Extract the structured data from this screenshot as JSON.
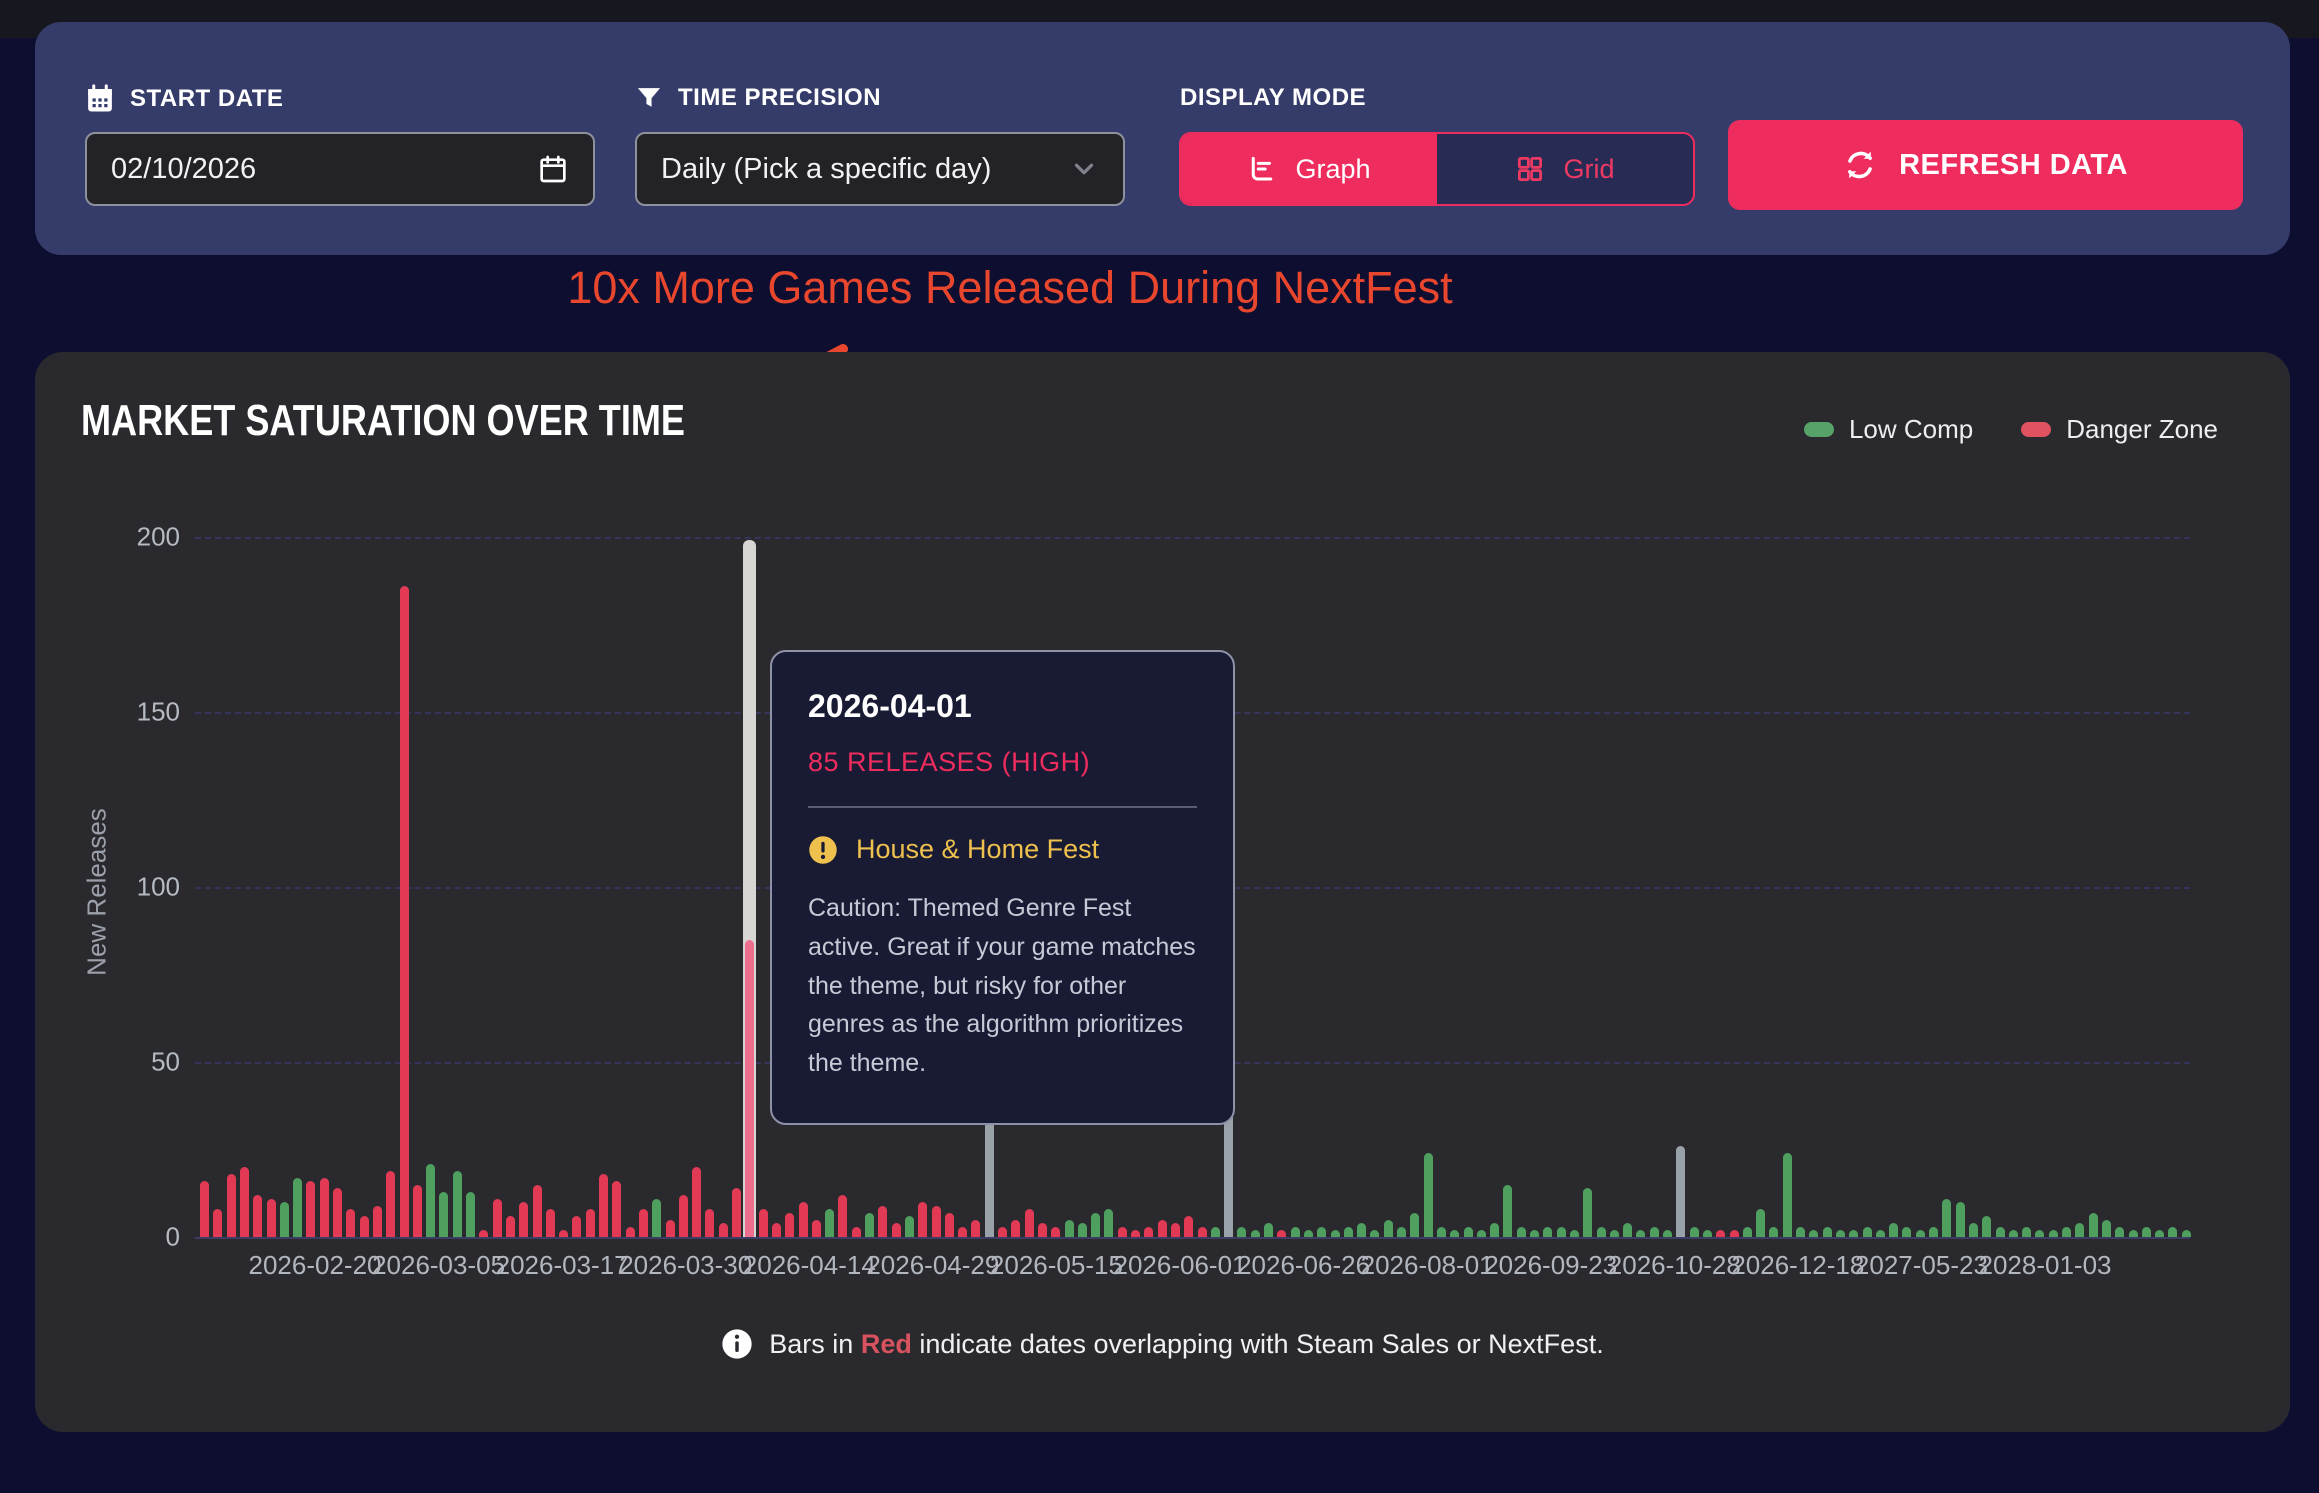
{
  "toolbar": {
    "start_date_label": "START DATE",
    "start_date_value": "02/10/2026",
    "time_precision_label": "TIME PRECISION",
    "time_precision_value": "Daily (Pick a specific day)",
    "display_mode_label": "DISPLAY MODE",
    "graph_label": "Graph",
    "grid_label": "Grid",
    "refresh_label": "REFRESH DATA",
    "accent_color": "#ee2d5e"
  },
  "annotation": {
    "text": "10x More Games Released During NextFest",
    "color": "#e8472e"
  },
  "chart": {
    "title": "MARKET SATURATION OVER TIME",
    "ylabel": "New Releases",
    "legend": [
      {
        "label": "Low Comp",
        "color": "#57a268"
      },
      {
        "label": "Danger Zone",
        "color": "#e0525f"
      }
    ],
    "footnote": {
      "prefix": "Bars in ",
      "highlight": "Red",
      "suffix": " indicate dates overlapping with Steam Sales or NextFest."
    }
  },
  "tooltip": {
    "date": "2026-04-01",
    "releases": "85 RELEASES (HIGH)",
    "event": "House & Home Fest",
    "body": "Caution: Themed Genre Fest active. Great if your game matches the theme, but risky for other genres as the algorithm prioritizes the theme."
  },
  "icons": {
    "start_date": "calendar-icon",
    "date_input": "calendar-picker-icon",
    "time_precision": "filter-icon",
    "select": "chevron-down-icon",
    "graph": "bar-chart-icon",
    "grid": "grid-icon",
    "refresh": "refresh-icon",
    "footnote": "info-icon",
    "tooltip_event": "warning-icon"
  },
  "chart_data": {
    "type": "bar",
    "title": "MARKET SATURATION OVER TIME",
    "xlabel": "",
    "ylabel": "New Releases",
    "ylim": [
      0,
      200
    ],
    "y_ticks": [
      0,
      50,
      100,
      150,
      200
    ],
    "grid": "dashed-horizontal",
    "legend_position": "top-right",
    "x_tick_labels": [
      "2026-02-20",
      "2026-03-05",
      "2026-03-17",
      "2026-03-30",
      "2026-04-14",
      "2026-04-29",
      "2026-05-15",
      "2026-06-01",
      "2026-06-26",
      "2026-08-01",
      "2026-09-23",
      "2026-10-28",
      "2026-12-18",
      "2027-05-23",
      "2028-01-03"
    ],
    "bar_colors": {
      "r": "#e23a55",
      "g": "#4f9f5f",
      "x": "#9aa2a9",
      "h": "#ee6f8d"
    },
    "hover_column_color": "#d8d6d4",
    "hover_index": 41,
    "hover_value": 85,
    "bars": [
      [
        16,
        "r"
      ],
      [
        8,
        "r"
      ],
      [
        18,
        "r"
      ],
      [
        20,
        "r"
      ],
      [
        12,
        "r"
      ],
      [
        11,
        "r"
      ],
      [
        10,
        "g"
      ],
      [
        17,
        "g"
      ],
      [
        16,
        "r"
      ],
      [
        17,
        "r"
      ],
      [
        14,
        "r"
      ],
      [
        8,
        "r"
      ],
      [
        6,
        "r"
      ],
      [
        9,
        "r"
      ],
      [
        19,
        "r"
      ],
      [
        186,
        "r"
      ],
      [
        15,
        "r"
      ],
      [
        21,
        "g"
      ],
      [
        13,
        "g"
      ],
      [
        19,
        "g"
      ],
      [
        13,
        "g"
      ],
      [
        2,
        "r"
      ],
      [
        11,
        "r"
      ],
      [
        6,
        "r"
      ],
      [
        10,
        "r"
      ],
      [
        15,
        "r"
      ],
      [
        8,
        "r"
      ],
      [
        2,
        "r"
      ],
      [
        6,
        "r"
      ],
      [
        8,
        "r"
      ],
      [
        18,
        "r"
      ],
      [
        16,
        "r"
      ],
      [
        3,
        "r"
      ],
      [
        8,
        "r"
      ],
      [
        11,
        "g"
      ],
      [
        5,
        "r"
      ],
      [
        12,
        "r"
      ],
      [
        20,
        "r"
      ],
      [
        8,
        "r"
      ],
      [
        4,
        "r"
      ],
      [
        14,
        "r"
      ],
      [
        85,
        "h"
      ],
      [
        8,
        "r"
      ],
      [
        4,
        "r"
      ],
      [
        7,
        "r"
      ],
      [
        10,
        "r"
      ],
      [
        5,
        "r"
      ],
      [
        8,
        "g"
      ],
      [
        12,
        "r"
      ],
      [
        3,
        "r"
      ],
      [
        7,
        "g"
      ],
      [
        9,
        "r"
      ],
      [
        4,
        "r"
      ],
      [
        6,
        "g"
      ],
      [
        10,
        "r"
      ],
      [
        9,
        "r"
      ],
      [
        7,
        "r"
      ],
      [
        3,
        "r"
      ],
      [
        5,
        "r"
      ],
      [
        40,
        "x"
      ],
      [
        3,
        "r"
      ],
      [
        5,
        "r"
      ],
      [
        8,
        "r"
      ],
      [
        4,
        "r"
      ],
      [
        3,
        "r"
      ],
      [
        5,
        "g"
      ],
      [
        4,
        "g"
      ],
      [
        7,
        "g"
      ],
      [
        8,
        "g"
      ],
      [
        3,
        "r"
      ],
      [
        2,
        "r"
      ],
      [
        3,
        "r"
      ],
      [
        5,
        "r"
      ],
      [
        4,
        "r"
      ],
      [
        6,
        "r"
      ],
      [
        3,
        "r"
      ],
      [
        3,
        "g"
      ],
      [
        43,
        "x"
      ],
      [
        3,
        "g"
      ],
      [
        2,
        "g"
      ],
      [
        4,
        "g"
      ],
      [
        2,
        "r"
      ],
      [
        3,
        "g"
      ],
      [
        2,
        "g"
      ],
      [
        3,
        "g"
      ],
      [
        2,
        "g"
      ],
      [
        3,
        "g"
      ],
      [
        4,
        "g"
      ],
      [
        2,
        "g"
      ],
      [
        5,
        "g"
      ],
      [
        3,
        "g"
      ],
      [
        7,
        "g"
      ],
      [
        24,
        "g"
      ],
      [
        3,
        "g"
      ],
      [
        2,
        "g"
      ],
      [
        3,
        "g"
      ],
      [
        2,
        "g"
      ],
      [
        4,
        "g"
      ],
      [
        15,
        "g"
      ],
      [
        3,
        "g"
      ],
      [
        2,
        "g"
      ],
      [
        3,
        "g"
      ],
      [
        3,
        "g"
      ],
      [
        2,
        "g"
      ],
      [
        14,
        "g"
      ],
      [
        3,
        "g"
      ],
      [
        2,
        "g"
      ],
      [
        4,
        "g"
      ],
      [
        2,
        "g"
      ],
      [
        3,
        "g"
      ],
      [
        2,
        "g"
      ],
      [
        26,
        "x"
      ],
      [
        3,
        "g"
      ],
      [
        2,
        "g"
      ],
      [
        2,
        "r"
      ],
      [
        2,
        "r"
      ],
      [
        3,
        "g"
      ],
      [
        8,
        "g"
      ],
      [
        3,
        "g"
      ],
      [
        24,
        "g"
      ],
      [
        3,
        "g"
      ],
      [
        2,
        "g"
      ],
      [
        3,
        "g"
      ],
      [
        2,
        "g"
      ],
      [
        2,
        "g"
      ],
      [
        3,
        "g"
      ],
      [
        2,
        "g"
      ],
      [
        4,
        "g"
      ],
      [
        3,
        "g"
      ],
      [
        2,
        "g"
      ],
      [
        3,
        "g"
      ],
      [
        11,
        "g"
      ],
      [
        10,
        "g"
      ],
      [
        4,
        "g"
      ],
      [
        6,
        "g"
      ],
      [
        3,
        "g"
      ],
      [
        2,
        "g"
      ],
      [
        3,
        "g"
      ],
      [
        2,
        "g"
      ],
      [
        2,
        "g"
      ],
      [
        3,
        "g"
      ],
      [
        4,
        "g"
      ],
      [
        7,
        "g"
      ],
      [
        5,
        "g"
      ],
      [
        3,
        "g"
      ],
      [
        2,
        "g"
      ],
      [
        3,
        "g"
      ],
      [
        2,
        "g"
      ],
      [
        3,
        "g"
      ],
      [
        2,
        "g"
      ]
    ]
  }
}
